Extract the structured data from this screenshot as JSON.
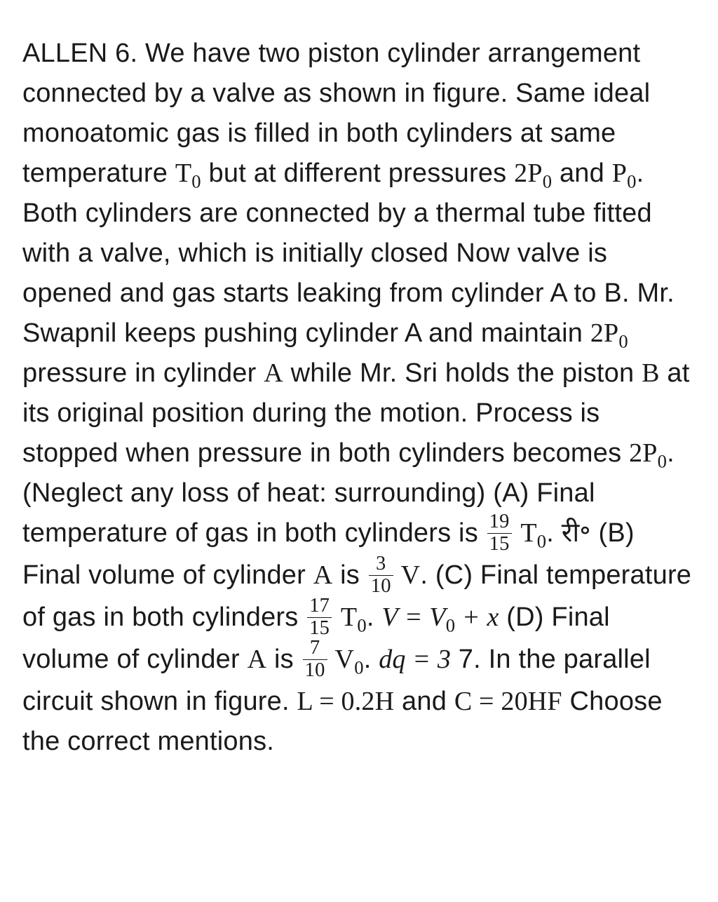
{
  "text": {
    "t1": "ALLEN 6. We have two piston cylinder arrangement connected by a valve as shown in figure. Same ideal monoatomic gas is filled in both cylinders at same temperature ",
    "T0": "T",
    "sub0": "0",
    "t2": " but at different pressures ",
    "two": "2",
    "P0": "P",
    "t3": " and ",
    "t4": ". Both cylinders are connected by a thermal tube fitted with a valve, which is initially closed Now valve is opened and gas starts leaking from cylinder A to B. Mr. Swapnil keeps pushing cylinder A and maintain ",
    "t5": " pressure in cylinder ",
    "A": "A",
    "t6": " while Mr. Sri holds the piston ",
    "B": "B",
    "t7": " at its original position during the motion. Process is stopped when pressure in both cylinders becomes ",
    "t8": ". (Neglect any loss of heat: surrounding) (A) Final temperature of gas in both cylinders is ",
    "t9": ". री॰ (B) Final volume of cylinder ",
    "t10": " is ",
    "V": " V",
    "t11": ". (C) Final temperature of gas in both cylinders ",
    "t12": ". ",
    "eq1": "V = V",
    "eq1b": " + x",
    "t13": " (D) Final volume of cylinder ",
    "t14": " is ",
    "V0": " V",
    "t15": ". ",
    "eq2": "dq = 3",
    "t16": " 7. In the parallel circuit shown in figure. ",
    "eq3a": "L = 0.2H",
    "t17": " and ",
    "eq3b": "C = 20HF",
    "t18": " Choose the correct mentions.",
    "sp": " "
  },
  "fractions": {
    "f1": {
      "num": "19",
      "den": "15"
    },
    "f2": {
      "num": "3",
      "den": "10"
    },
    "f3": {
      "num": "17",
      "den": "15"
    },
    "f4": {
      "num": "7",
      "den": "10"
    }
  },
  "style": {
    "font_size": 38,
    "line_height": 1.5,
    "text_color": "#1a1a1a",
    "background_color": "#ffffff"
  }
}
